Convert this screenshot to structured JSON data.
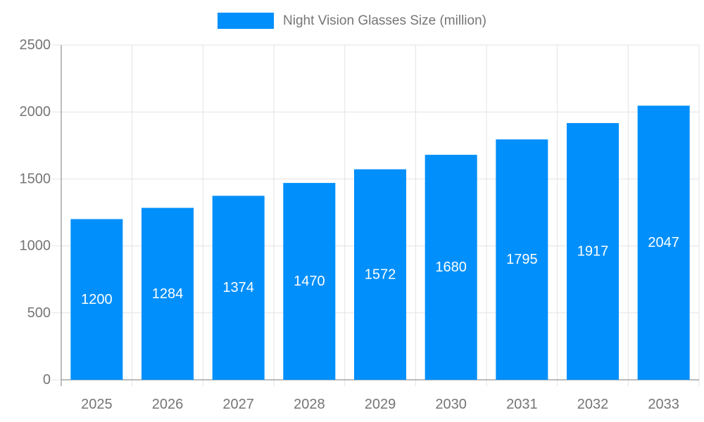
{
  "chart_data": {
    "type": "bar",
    "title": "Night Vision Glasses Size (million)",
    "legend_label": "Night Vision Glasses Size (million)",
    "legend_position": "top",
    "categories": [
      "2025",
      "2026",
      "2027",
      "2028",
      "2029",
      "2030",
      "2031",
      "2032",
      "2033"
    ],
    "values": [
      1200,
      1284,
      1374,
      1470,
      1572,
      1680,
      1795,
      1917,
      2047
    ],
    "xlabel": "",
    "ylabel": "",
    "ylim": [
      0,
      2500
    ],
    "yticks": [
      0,
      500,
      1000,
      1500,
      2000,
      2500
    ],
    "grid": true,
    "colors": {
      "bar": "#008FFB",
      "bar_label": "#FFFFFF",
      "axis_text": "#757575",
      "grid_line": "#E3E3E3",
      "axis_line": "#A6A6A6",
      "background": "#FFFFFF"
    }
  }
}
